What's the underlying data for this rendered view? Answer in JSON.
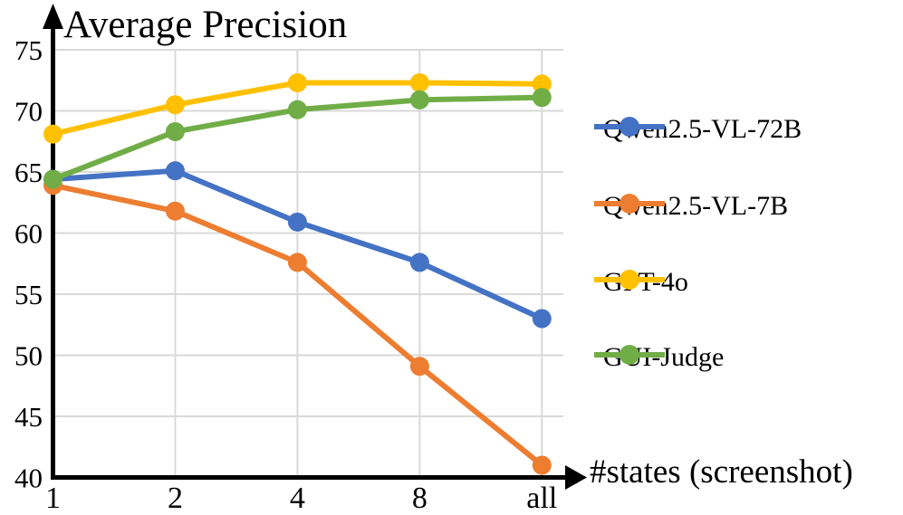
{
  "title": "Average Precision",
  "x_axis_label": "#states (screenshot)",
  "colors": {
    "axis": "#000000",
    "grid": "#d9d9d9",
    "blue": "#4472c4",
    "orange": "#ed7d31",
    "yellow": "#ffc000",
    "green": "#70ad47"
  },
  "chart_data": {
    "type": "line",
    "title": "Average Precision",
    "xlabel": "#states (screenshot)",
    "ylabel": "",
    "categories": [
      "1",
      "2",
      "4",
      "8",
      "all"
    ],
    "series": [
      {
        "name": "Qwen2.5-VL-72B",
        "color": "#4472c4",
        "values": [
          64.4,
          65.1,
          60.9,
          57.6,
          53.0
        ]
      },
      {
        "name": "Qwen2.5-VL-7B",
        "color": "#ed7d31",
        "values": [
          63.9,
          61.8,
          57.6,
          49.1,
          41.0
        ]
      },
      {
        "name": "GPT-4o",
        "color": "#ffc000",
        "values": [
          68.1,
          70.5,
          72.3,
          72.3,
          72.2
        ]
      },
      {
        "name": "GUI-Judge",
        "color": "#70ad47",
        "values": [
          64.4,
          68.3,
          70.1,
          70.9,
          71.1
        ]
      }
    ],
    "ylim": [
      40,
      75
    ],
    "yticks": [
      75,
      70,
      65,
      60,
      55,
      50,
      45,
      40
    ],
    "grid": true,
    "marker": "circle",
    "legend_position": "right"
  }
}
